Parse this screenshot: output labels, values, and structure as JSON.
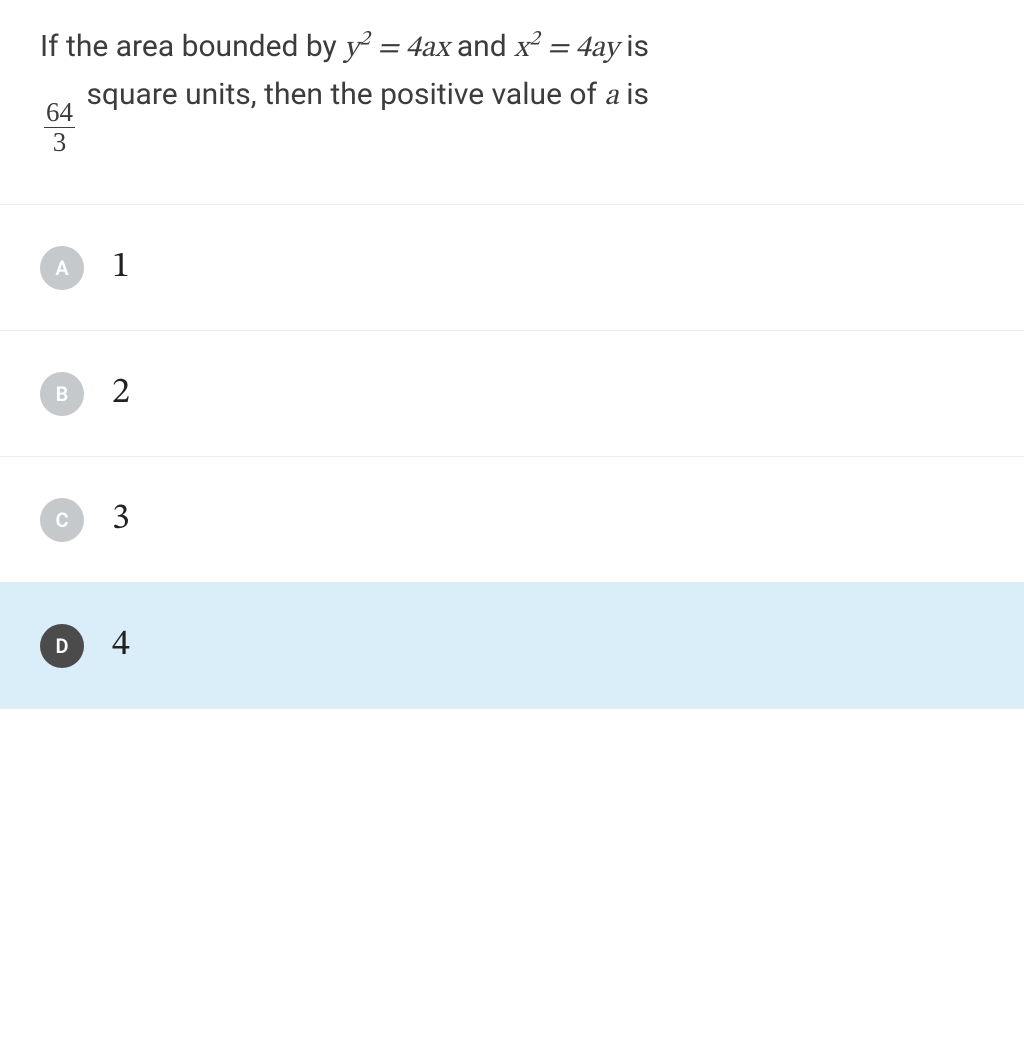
{
  "question": {
    "pre1": "If the area bounded by ",
    "expr1_var": "y",
    "expr1_exp": "2",
    "expr1_eq": " = 4a",
    "expr1_var2": "x",
    "mid1": " and ",
    "expr2_var": "x",
    "expr2_exp": "2",
    "expr2_eq": " = 4a",
    "expr2_var2": "y",
    "post1": " is",
    "frac_num": "64",
    "frac_den": "3",
    "post2": " square units, then the positive value of ",
    "var_a": "a",
    "post3": " is"
  },
  "options": [
    {
      "letter": "A",
      "text": "1",
      "selected": false
    },
    {
      "letter": "B",
      "text": "2",
      "selected": false
    },
    {
      "letter": "C",
      "text": "3",
      "selected": false
    },
    {
      "letter": "D",
      "text": "4",
      "selected": true
    }
  ],
  "colors": {
    "badge_unselected": "#c6c9cc",
    "badge_selected": "#4b4b4b",
    "row_selected_bg": "#d9eef8",
    "divider": "#ececec",
    "text": "#3c3c3c"
  }
}
